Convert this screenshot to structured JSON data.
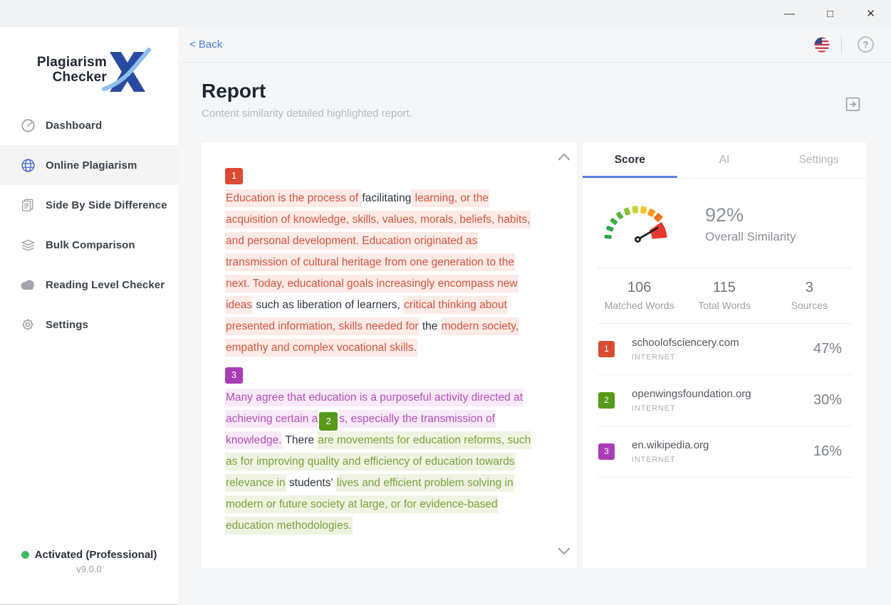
{
  "window": {
    "minimize": "—",
    "maximize": "□",
    "close": "✕"
  },
  "topbar": {
    "back": "< Back",
    "help_glyph": "?"
  },
  "sidebar": {
    "logo": {
      "line1": "Plagiarism",
      "line2": "Checker"
    },
    "items": [
      {
        "label": "Dashboard",
        "icon": "gauge-icon",
        "active": false
      },
      {
        "label": "Online Plagiarism",
        "icon": "globe-icon",
        "active": true
      },
      {
        "label": "Side By Side Difference",
        "icon": "documents-icon",
        "active": false
      },
      {
        "label": "Bulk Comparison",
        "icon": "layers-icon",
        "active": false
      },
      {
        "label": "Reading Level Checker",
        "icon": "cloud-icon",
        "active": false
      },
      {
        "label": "Settings",
        "icon": "gear-icon",
        "active": false
      }
    ],
    "status": {
      "label": "Activated (Professional)",
      "version": "v9.0.0",
      "dot_color": "#3dba62"
    }
  },
  "header": {
    "title": "Report",
    "subtitle": "Content similarity detailed highlighted report."
  },
  "document": {
    "paragraphs": [
      {
        "badge": {
          "num": "1",
          "color": "#d94b32"
        },
        "segments": [
          {
            "text": "Education is the process of ",
            "style": "src1"
          },
          {
            "text": "facilitating",
            "style": "plain"
          },
          {
            "text": " learning, or the acquisition of knowledge, skills, values, morals, beliefs, habits, and personal development. Education originated as transmission of cultural heritage from one generation to the next. Today, educational goals increasingly encompass new ideas",
            "style": "src1"
          },
          {
            "text": " such as liberation of learners, ",
            "style": "plain"
          },
          {
            "text": "critical thinking about presented information, skills needed for",
            "style": "src1"
          },
          {
            "text": " the ",
            "style": "plain"
          },
          {
            "text": "modern society, empathy and complex vocational skills.",
            "style": "src1"
          }
        ]
      },
      {
        "badge": {
          "num": "3",
          "color": "#aa3cb5"
        },
        "segments": [
          {
            "text": "Many agree that education is a purposeful activity directed at achieving certain a",
            "style": "src3"
          },
          {
            "text": "2",
            "style": "badge2",
            "color": "#57991b"
          },
          {
            "text": "s, especially the transmission of knowledge.",
            "style": "src3"
          },
          {
            "text": " There ",
            "style": "plain"
          },
          {
            "text": "are movements for education reforms, such as for improving quality and efficiency of education towards relevance in",
            "style": "src2"
          },
          {
            "text": " students' ",
            "style": "plain"
          },
          {
            "text": "lives and efficient problem solving in modern or future society at large, or for evidence-based education methodologies.",
            "style": "src2"
          }
        ]
      }
    ]
  },
  "panel": {
    "tabs": [
      {
        "label": "Score",
        "active": true
      },
      {
        "label": "AI",
        "active": false
      },
      {
        "label": "Settings",
        "active": false
      }
    ],
    "score": {
      "percent": "92%",
      "label": "Overall Similarity"
    },
    "gauge": {
      "segments": [
        "#2fa84d",
        "#2fa84d",
        "#3fae42",
        "#58b53a",
        "#8cc234",
        "#c9d32c",
        "#f2c42d",
        "#f79c1d",
        "#f0711c"
      ],
      "wedge_color": "#e63a2e"
    },
    "stats": [
      {
        "value": "106",
        "label": "Matched Words"
      },
      {
        "value": "115",
        "label": "Total Words"
      },
      {
        "value": "3",
        "label": "Sources"
      }
    ],
    "sources": [
      {
        "num": "1",
        "color": "#d94b32",
        "domain": "schoolofsciencery.com",
        "type": "INTERNET",
        "percent": "47%"
      },
      {
        "num": "2",
        "color": "#57991b",
        "domain": "openwingsfoundation.org",
        "type": "INTERNET",
        "percent": "30%"
      },
      {
        "num": "3",
        "color": "#aa3cb5",
        "domain": "en.wikipedia.org",
        "type": "INTERNET",
        "percent": "16%"
      }
    ]
  },
  "colors": {
    "accent_blue": "#5c82e0",
    "link_blue": "#4a7cd6",
    "src1_text": "#d4553f",
    "src1_bg": "#fcebe7",
    "src2_text": "#7aa33a",
    "src2_bg": "#eff3e2",
    "src3_text": "#b44fba",
    "src3_bg": "#f9eaf9"
  }
}
